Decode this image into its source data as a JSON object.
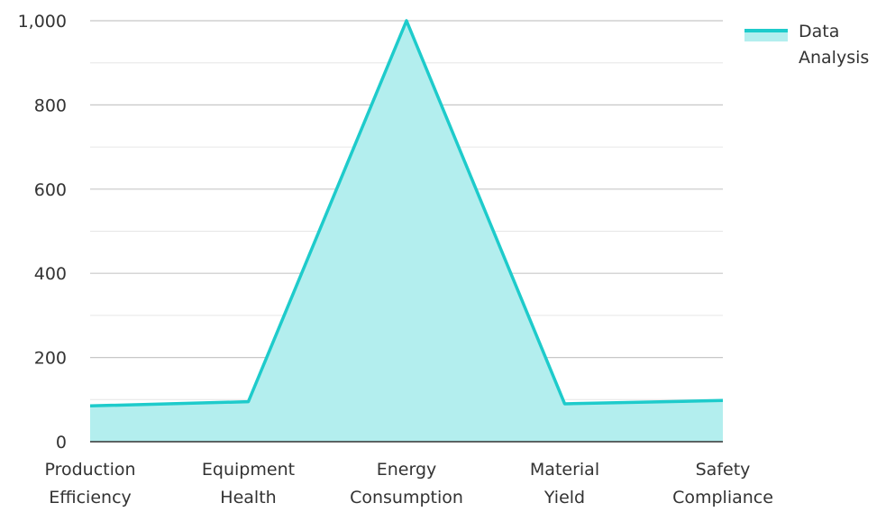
{
  "chart_data": {
    "type": "area",
    "title": "",
    "xlabel": "",
    "ylabel": "",
    "categories": [
      [
        "Production",
        "Efficiency"
      ],
      [
        "Equipment",
        "Health"
      ],
      [
        "Energy",
        "Consumption"
      ],
      [
        "Material",
        "Yield"
      ],
      [
        "Safety",
        "Compliance"
      ]
    ],
    "series": [
      {
        "name": "Data Analysis",
        "legend_lines": [
          "Data",
          "Analysis"
        ],
        "values": [
          85,
          95,
          1000,
          90,
          98
        ],
        "line_color": "#1ecbcb",
        "fill_color": "#b3eeee"
      }
    ],
    "ylim": [
      0,
      1000
    ],
    "yticks": [
      0,
      200,
      400,
      600,
      800,
      1000
    ],
    "ytick_labels": [
      "0",
      "200",
      "400",
      "600",
      "800",
      "1,000"
    ],
    "grid": true,
    "minor_grid": true,
    "legend": "top-right"
  }
}
